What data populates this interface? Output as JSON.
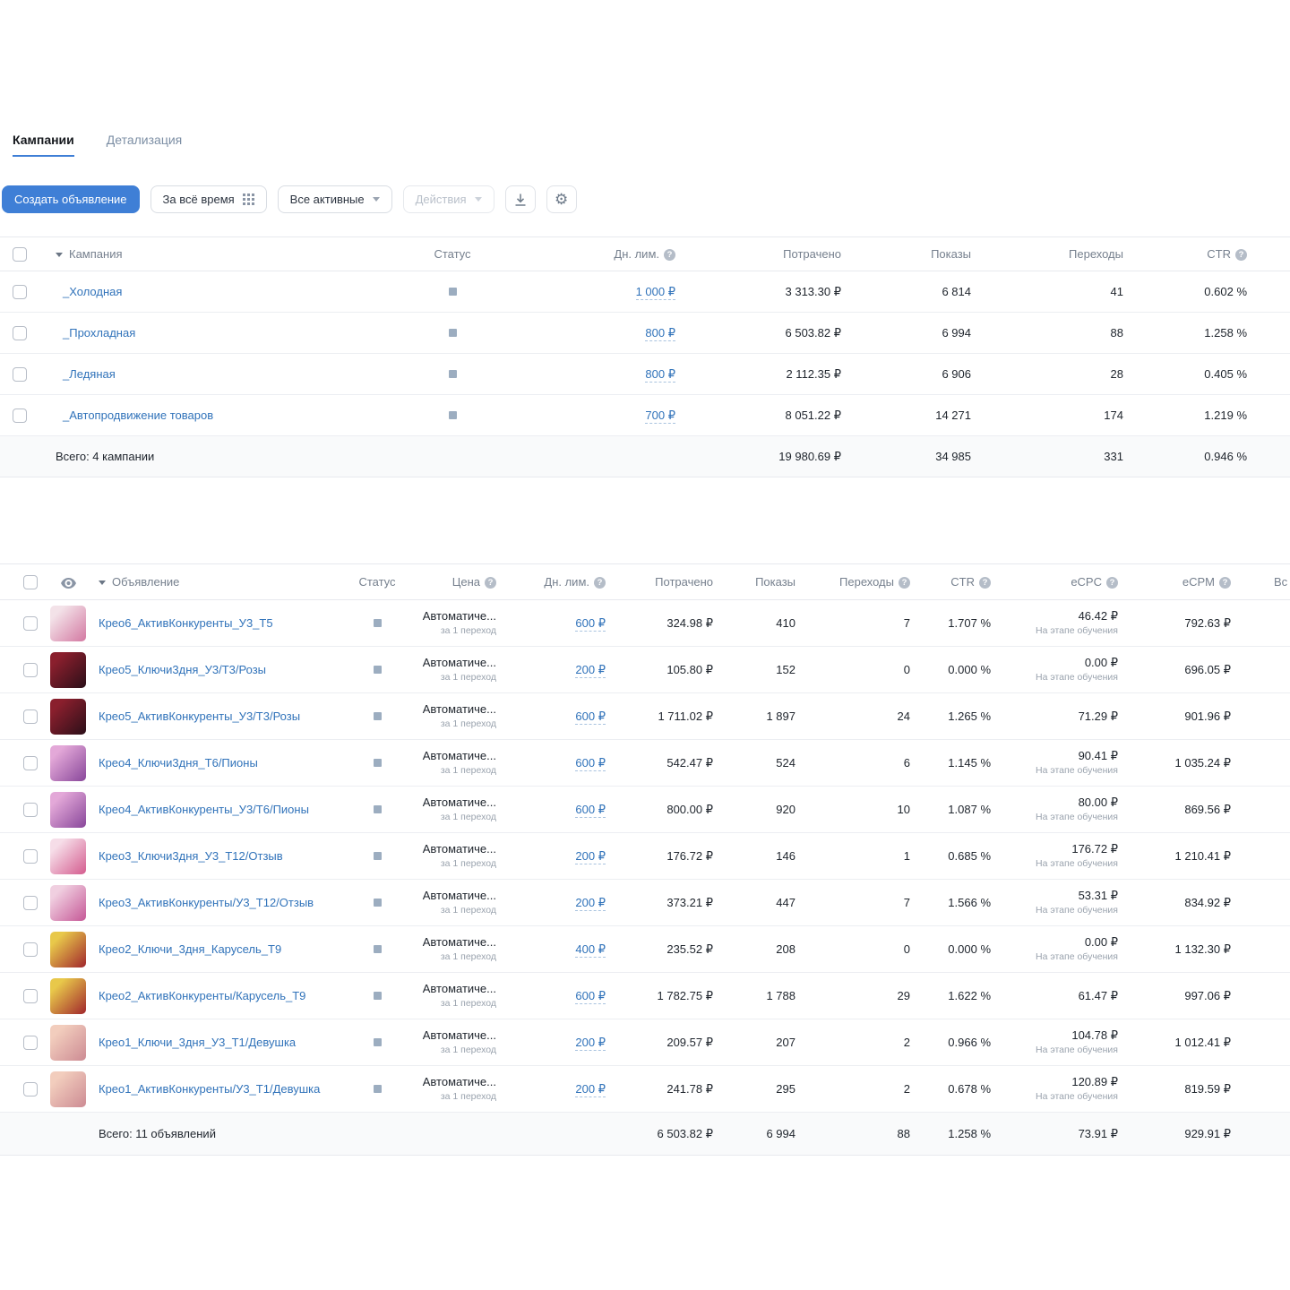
{
  "accent_color": "#3f7fd6",
  "link_color": "#3173ba",
  "tabs": {
    "campaigns": "Кампании",
    "details": "Детализация"
  },
  "toolbar": {
    "create_button": "Создать объявление",
    "period_filter": "За всё время",
    "status_filter": "Все активные",
    "actions_button": "Действия"
  },
  "campaigns_table": {
    "headers": {
      "name": "Кампания",
      "status": "Статус",
      "daily_limit": "Дн. лим.",
      "spent": "Потрачено",
      "impressions": "Показы",
      "clicks": "Переходы",
      "ctr": "CTR"
    },
    "rows": [
      {
        "name": "_Холодная",
        "status": "stopped",
        "daily_limit": "1 000 ₽",
        "spent": "3 313.30 ₽",
        "impressions": "6 814",
        "clicks": "41",
        "ctr": "0.602 %"
      },
      {
        "name": "_Прохладная",
        "status": "stopped",
        "daily_limit": "800 ₽",
        "spent": "6 503.82 ₽",
        "impressions": "6 994",
        "clicks": "88",
        "ctr": "1.258 %"
      },
      {
        "name": "_Ледяная",
        "status": "stopped",
        "daily_limit": "800 ₽",
        "spent": "2 112.35 ₽",
        "impressions": "6 906",
        "clicks": "28",
        "ctr": "0.405 %"
      },
      {
        "name": "_Автопродвижение товаров",
        "status": "stopped",
        "daily_limit": "700 ₽",
        "spent": "8 051.22 ₽",
        "impressions": "14 271",
        "clicks": "174",
        "ctr": "1.219 %"
      }
    ],
    "footer": {
      "label": "Всего: 4 кампании",
      "spent": "19 980.69 ₽",
      "impressions": "34 985",
      "clicks": "331",
      "ctr": "0.946 %"
    }
  },
  "ads_table": {
    "headers": {
      "name": "Объявление",
      "status": "Статус",
      "price": "Цена",
      "daily_limit": "Дн. лим.",
      "spent": "Потрачено",
      "impressions": "Показы",
      "clicks": "Переходы",
      "ctr": "CTR",
      "ecpc": "eCPC",
      "ecpm": "eCPM",
      "truncated_last": "Вс"
    },
    "price_primary": "Автоматиче...",
    "price_secondary": "за 1 переход",
    "learning_label": "На этапе обучения",
    "rows": [
      {
        "name": "Крео6_АктивКонкуренты_У3_Т5",
        "status": "stopped",
        "daily_limit": "600 ₽",
        "spent": "324.98 ₽",
        "impressions": "410",
        "clicks": "7",
        "ctr": "1.707 %",
        "ecpc": "46.42 ₽",
        "learning": true,
        "ecpm": "792.63 ₽",
        "thumb_colors": [
          "#f3e2e8",
          "#d57fa6"
        ]
      },
      {
        "name": "Крео5_Ключи3дня_У3/Т3/Розы",
        "status": "stopped",
        "daily_limit": "200 ₽",
        "spent": "105.80 ₽",
        "impressions": "152",
        "clicks": "0",
        "ctr": "0.000 %",
        "ecpc": "0.00 ₽",
        "learning": true,
        "ecpm": "696.05 ₽",
        "thumb_colors": [
          "#8a1f2d",
          "#31101a"
        ]
      },
      {
        "name": "Крео5_АктивКонкуренты_У3/Т3/Розы",
        "status": "stopped",
        "daily_limit": "600 ₽",
        "spent": "1 711.02 ₽",
        "impressions": "1 897",
        "clicks": "24",
        "ctr": "1.265 %",
        "ecpc": "71.29 ₽",
        "learning": false,
        "ecpm": "901.96 ₽",
        "thumb_colors": [
          "#8a1f2d",
          "#31101a"
        ]
      },
      {
        "name": "Крео4_Ключи3дня_Т6/Пионы",
        "status": "stopped",
        "daily_limit": "600 ₽",
        "spent": "542.47 ₽",
        "impressions": "524",
        "clicks": "6",
        "ctr": "1.145 %",
        "ecpc": "90.41 ₽",
        "learning": true,
        "ecpm": "1 035.24 ₽",
        "thumb_colors": [
          "#e3a8d8",
          "#8e4d9e"
        ]
      },
      {
        "name": "Крео4_АктивКонкуренты_У3/Т6/Пионы",
        "status": "stopped",
        "daily_limit": "600 ₽",
        "spent": "800.00 ₽",
        "impressions": "920",
        "clicks": "10",
        "ctr": "1.087 %",
        "ecpc": "80.00 ₽",
        "learning": true,
        "ecpm": "869.56 ₽",
        "thumb_colors": [
          "#e3a8d8",
          "#8e4d9e"
        ]
      },
      {
        "name": "Крео3_Ключи3дня_У3_Т12/Отзыв",
        "status": "stopped",
        "daily_limit": "200 ₽",
        "spent": "176.72 ₽",
        "impressions": "146",
        "clicks": "1",
        "ctr": "0.685 %",
        "ecpc": "176.72 ₽",
        "learning": true,
        "ecpm": "1 210.41 ₽",
        "thumb_colors": [
          "#f6dde8",
          "#d66494"
        ]
      },
      {
        "name": "Крео3_АктивКонкуренты/У3_Т12/Отзыв",
        "status": "stopped",
        "daily_limit": "200 ₽",
        "spent": "373.21 ₽",
        "impressions": "447",
        "clicks": "7",
        "ctr": "1.566 %",
        "ecpc": "53.31 ₽",
        "learning": true,
        "ecpm": "834.92 ₽",
        "thumb_colors": [
          "#f0cfe0",
          "#c85f9b"
        ]
      },
      {
        "name": "Крео2_Ключи_3дня_Карусель_Т9",
        "status": "stopped",
        "daily_limit": "400 ₽",
        "spent": "235.52 ₽",
        "impressions": "208",
        "clicks": "0",
        "ctr": "0.000 %",
        "ecpc": "0.00 ₽",
        "learning": true,
        "ecpm": "1 132.30 ₽",
        "thumb_colors": [
          "#e8c84a",
          "#a5302e"
        ]
      },
      {
        "name": "Крео2_АктивКонкуренты/Карусель_Т9",
        "status": "stopped",
        "daily_limit": "600 ₽",
        "spent": "1 782.75 ₽",
        "impressions": "1 788",
        "clicks": "29",
        "ctr": "1.622 %",
        "ecpc": "61.47 ₽",
        "learning": false,
        "ecpm": "997.06 ₽",
        "thumb_colors": [
          "#e8c84a",
          "#a5302e"
        ]
      },
      {
        "name": "Крео1_Ключи_3дня_У3_Т1/Девушка",
        "status": "stopped",
        "daily_limit": "200 ₽",
        "spent": "209.57 ₽",
        "impressions": "207",
        "clicks": "2",
        "ctr": "0.966 %",
        "ecpc": "104.78 ₽",
        "learning": true,
        "ecpm": "1 012.41 ₽",
        "thumb_colors": [
          "#f2cdbd",
          "#cf8f96"
        ]
      },
      {
        "name": "Крео1_АктивКонкуренты/У3_Т1/Девушка",
        "status": "stopped",
        "daily_limit": "200 ₽",
        "spent": "241.78 ₽",
        "impressions": "295",
        "clicks": "2",
        "ctr": "0.678 %",
        "ecpc": "120.89 ₽",
        "learning": true,
        "ecpm": "819.59 ₽",
        "thumb_colors": [
          "#f2cdbd",
          "#cf8f96"
        ]
      }
    ],
    "footer": {
      "label": "Всего: 11 объявлений",
      "spent": "6 503.82 ₽",
      "impressions": "6 994",
      "clicks": "88",
      "ctr": "1.258 %",
      "ecpc": "73.91 ₽",
      "ecpm": "929.91 ₽"
    }
  }
}
